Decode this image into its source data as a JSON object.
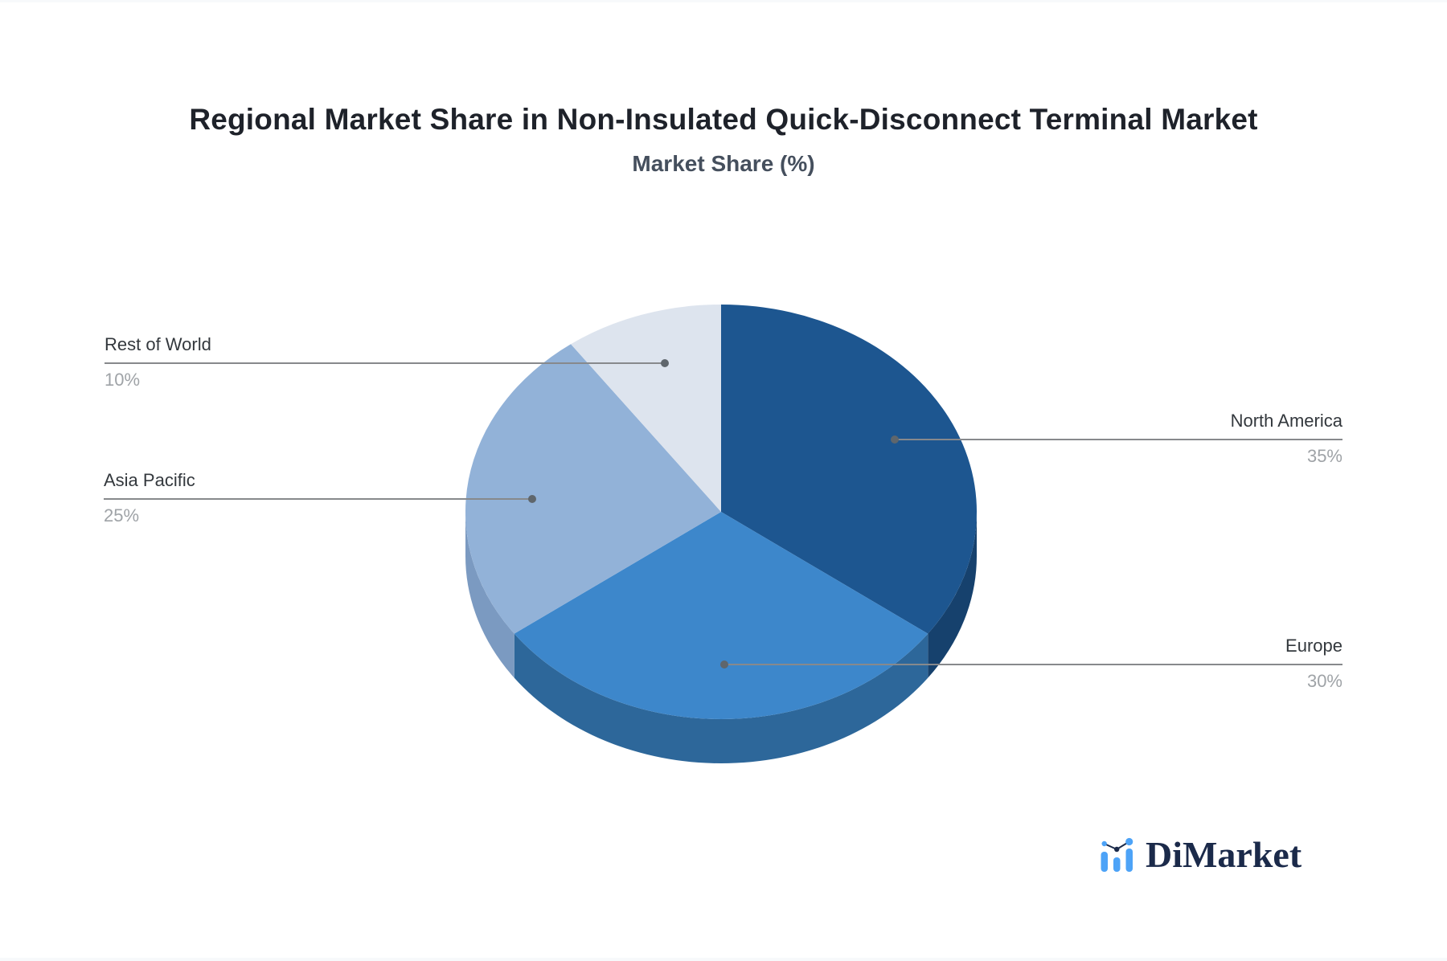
{
  "page": {
    "background_color": "#ffffff",
    "edge_strip_color": "#f7f9fb"
  },
  "chart_data": {
    "type": "pie",
    "style": "3d-pie",
    "title": "Regional Market Share in Non-Insulated Quick-Disconnect Terminal Market",
    "subtitle": "Market Share (%)",
    "unit": "%",
    "order": "clockwise-from-top",
    "start_angle_deg": 0,
    "labels": [
      "North America",
      "Europe",
      "Asia Pacific",
      "Rest of World"
    ],
    "values": [
      35,
      30,
      25,
      10
    ],
    "value_labels": [
      "35%",
      "30%",
      "25%",
      "10%"
    ],
    "slice_colors": [
      "#1d5690",
      "#3d87cb",
      "#92b2d8",
      "#dde4ee"
    ],
    "slice_side_colors": [
      "#16416d",
      "#2d679a",
      "#7b9ac1",
      "#c5cede"
    ],
    "leader_line_color": "#87898c",
    "leader_dot_color": "#5f666c",
    "label_text_color": "#33383d",
    "value_text_color": "#9fa3a7",
    "title_color": "#1e222a",
    "subtitle_color": "#454f5d",
    "legend_position": "none"
  },
  "brand": {
    "logo_text": "DiMarket",
    "logo_text_color": "#1b2a4a",
    "logo_accent_color": "#4da3f7",
    "logo_icon": "bar-line-chart-icon"
  }
}
